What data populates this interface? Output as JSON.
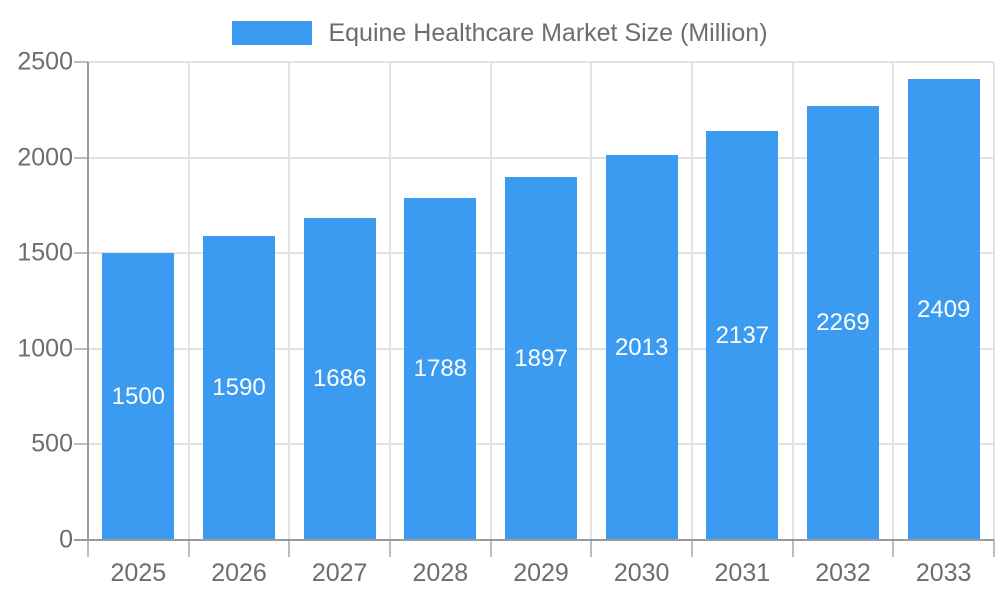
{
  "legend": {
    "label": "Equine Healthcare Market Size (Million)"
  },
  "chart_data": {
    "type": "bar",
    "title": "Equine Healthcare Market Size (Million)",
    "categories": [
      "2025",
      "2026",
      "2027",
      "2028",
      "2029",
      "2030",
      "2031",
      "2032",
      "2033"
    ],
    "values": [
      1500,
      1590,
      1686,
      1788,
      1897,
      2013,
      2137,
      2269,
      2409
    ],
    "bar_value_labels": [
      "1500",
      "1590",
      "1686",
      "1788",
      "1897",
      "2013",
      "2137",
      "2269",
      "2409"
    ],
    "xlabel": "",
    "ylabel": "",
    "ylim": [
      0,
      2500
    ],
    "yticks": [
      0,
      500,
      1000,
      1500,
      2000,
      2500
    ],
    "grid": true,
    "legend_position": "top",
    "value_labels_inside_bars": true,
    "colors": {
      "bar": "#3A9BF0",
      "bar_label_text": "#ffffff",
      "grid": "#e2e2e2",
      "axis": "#9a9a9a",
      "tick": "#bdbdbd",
      "label_text": "#6d6d6d"
    }
  }
}
